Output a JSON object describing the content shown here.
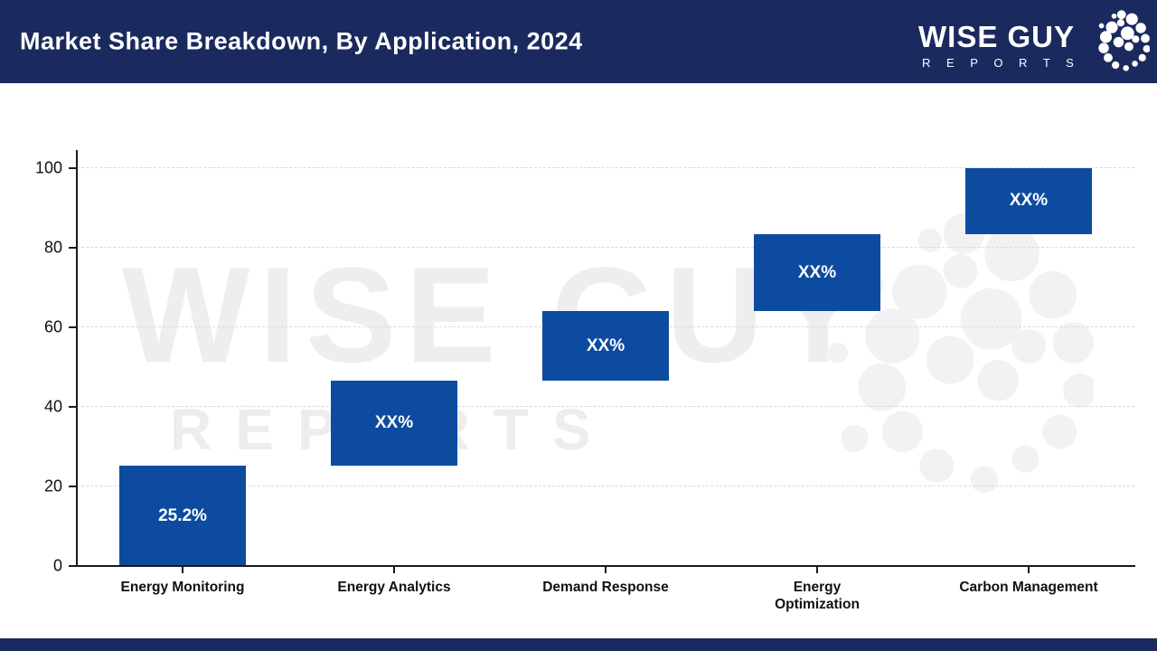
{
  "header": {
    "title": "Market Share Breakdown, By Application, 2024",
    "logo": {
      "line1": "WISE GUY",
      "line2": "R E P O R T S"
    }
  },
  "watermark": {
    "line1": "WISE GUY",
    "line2": "REPORTS"
  },
  "colors": {
    "header_bg": "#1b2a5e",
    "bar": "#0d4ba0",
    "bar_label": "#ffffff",
    "grid": "#d9d9d9",
    "axis": "#1a1a1a"
  },
  "chart_data": {
    "type": "bar",
    "subtype": "waterfall",
    "title": "Market Share Breakdown, By Application, 2024",
    "xlabel": "",
    "ylabel": "",
    "ylim": [
      0,
      100
    ],
    "yticks": [
      0,
      20,
      40,
      60,
      80,
      100
    ],
    "grid": "horizontal-dashed",
    "categories": [
      "Energy Monitoring",
      "Energy Analytics",
      "Demand Response",
      "Energy\nOptimization",
      "Carbon Management"
    ],
    "segments": [
      {
        "category": "Energy Monitoring",
        "start": 0,
        "end": 25.2,
        "label": "25.2%"
      },
      {
        "category": "Energy Analytics",
        "start": 25.2,
        "end": 46.5,
        "label": "XX%"
      },
      {
        "category": "Demand Response",
        "start": 46.5,
        "end": 64,
        "label": "XX%"
      },
      {
        "category": "Energy Optimization",
        "start": 64,
        "end": 83.5,
        "label": "XX%"
      },
      {
        "category": "Carbon Management",
        "start": 83.5,
        "end": 100,
        "label": "XX%"
      }
    ]
  }
}
